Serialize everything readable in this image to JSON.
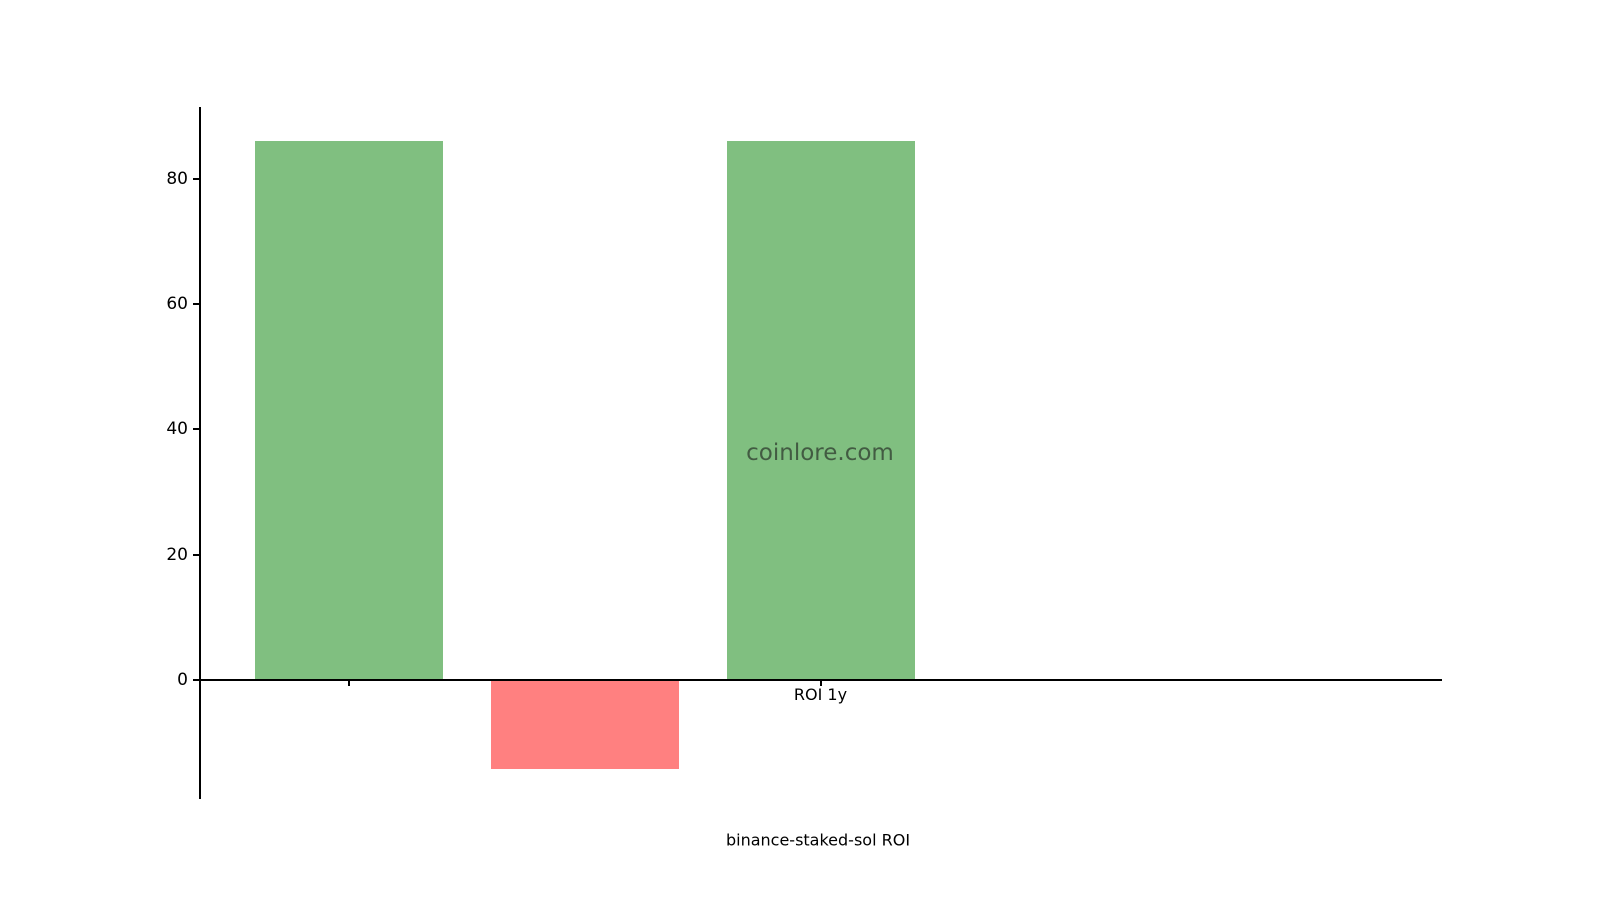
{
  "figure": {
    "background": "#ffffff"
  },
  "colors": {
    "positive_bar": "#80bf80",
    "negative_bar": "#ff8080",
    "axis": "#000000",
    "tick_label": "#000000"
  },
  "chart_data": {
    "type": "bar",
    "title": "",
    "xlabel": "binance-staked-sol ROI",
    "ylabel": "",
    "categories": [
      "",
      "",
      "ROI 1y"
    ],
    "values": [
      86,
      -14.2,
      86
    ],
    "bar_color_keys": [
      "positive_bar",
      "negative_bar",
      "positive_bar"
    ],
    "yticks": [
      0,
      20,
      40,
      60,
      80
    ],
    "ytick_labels": [
      "0",
      "20",
      "40",
      "60",
      "80"
    ],
    "ylim": [
      -19,
      91.5
    ],
    "grid": false,
    "legend": false,
    "watermark": "coinlore.com"
  }
}
